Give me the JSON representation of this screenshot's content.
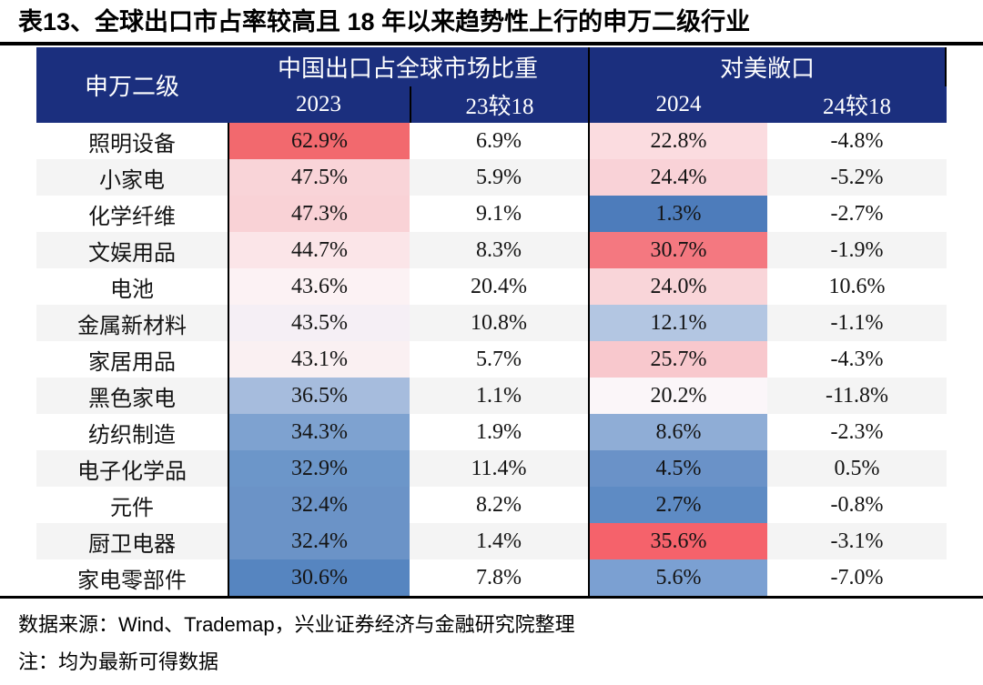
{
  "title": "表13、全球出口市占率较高且 18 年以来趋势性上行的申万二级行业",
  "table": {
    "corner_header": "申万二级",
    "group1_header": "中国出口占全球市场比重",
    "group2_header": "对美敞口",
    "sub_headers": [
      "2023",
      "23较18",
      "2024",
      "24较18"
    ],
    "header_bg": "#1B2F7E",
    "header_text_color": "#FFFFFF",
    "zebra_stripe_color": "#F4F4F4",
    "heatmap_max_red": "#F2696E",
    "heatmap_min_blue": "#4D7CBB",
    "rows": [
      {
        "name": "照明设备",
        "export_share_2023": "62.9%",
        "export_share_chg": "6.9%",
        "us_exposure_2024": "22.8%",
        "us_exposure_chg": "-4.8%",
        "color_2023": "#F2696E",
        "color_2024": "#FBDCE0"
      },
      {
        "name": "小家电",
        "export_share_2023": "47.5%",
        "export_share_chg": "5.9%",
        "us_exposure_2024": "24.4%",
        "us_exposure_chg": "-5.2%",
        "color_2023": "#F9D4D8",
        "color_2024": "#F9D2D7"
      },
      {
        "name": "化学纤维",
        "export_share_2023": "47.3%",
        "export_share_chg": "9.1%",
        "us_exposure_2024": "1.3%",
        "us_exposure_chg": "-2.7%",
        "color_2023": "#F9D2D6",
        "color_2024": "#4D7CBB"
      },
      {
        "name": "文娱用品",
        "export_share_2023": "44.7%",
        "export_share_chg": "8.3%",
        "us_exposure_2024": "30.7%",
        "us_exposure_chg": "-1.9%",
        "color_2023": "#FBE5E8",
        "color_2024": "#F47880"
      },
      {
        "name": "电池",
        "export_share_2023": "43.6%",
        "export_share_chg": "20.4%",
        "us_exposure_2024": "24.0%",
        "us_exposure_chg": "10.6%",
        "color_2023": "#FCF2F4",
        "color_2024": "#F9D5D9"
      },
      {
        "name": "金属新材料",
        "export_share_2023": "43.5%",
        "export_share_chg": "10.8%",
        "us_exposure_2024": "12.1%",
        "us_exposure_chg": "-1.1%",
        "color_2023": "#F5EFF5",
        "color_2024": "#B3C6E2"
      },
      {
        "name": "家居用品",
        "export_share_2023": "43.1%",
        "export_share_chg": "5.7%",
        "us_exposure_2024": "25.7%",
        "us_exposure_chg": "-4.3%",
        "color_2023": "#FAF0F2",
        "color_2024": "#F8C8CD"
      },
      {
        "name": "黑色家电",
        "export_share_2023": "36.5%",
        "export_share_chg": "1.1%",
        "us_exposure_2024": "20.2%",
        "us_exposure_chg": "-11.8%",
        "color_2023": "#A6BCDD",
        "color_2024": "#FBF6F9"
      },
      {
        "name": "纺织制造",
        "export_share_2023": "34.3%",
        "export_share_chg": "1.9%",
        "us_exposure_2024": "8.6%",
        "us_exposure_chg": "-2.3%",
        "color_2023": "#7EA2D0",
        "color_2024": "#8FADD6"
      },
      {
        "name": "电子化学品",
        "export_share_2023": "32.9%",
        "export_share_chg": "11.4%",
        "us_exposure_2024": "4.5%",
        "us_exposure_chg": "0.5%",
        "color_2023": "#6C96C9",
        "color_2024": "#6A92C8"
      },
      {
        "name": "元件",
        "export_share_2023": "32.4%",
        "export_share_chg": "8.2%",
        "us_exposure_2024": "2.7%",
        "us_exposure_chg": "-0.8%",
        "color_2023": "#6B93C7",
        "color_2024": "#5E8BC4"
      },
      {
        "name": "厨卫电器",
        "export_share_2023": "32.4%",
        "export_share_chg": "1.4%",
        "us_exposure_2024": "35.6%",
        "us_exposure_chg": "-3.1%",
        "color_2023": "#6B93C7",
        "color_2024": "#F5626B"
      },
      {
        "name": "家电零部件",
        "export_share_2023": "30.6%",
        "export_share_chg": "7.8%",
        "us_exposure_2024": "5.6%",
        "us_exposure_chg": "-7.0%",
        "color_2023": "#5685C0",
        "color_2024": "#7BA0D2"
      }
    ]
  },
  "footer": {
    "source": "数据来源：Wind、Trademap，兴业证券经济与金融研究院整理",
    "note": "注：均为最新可得数据"
  }
}
